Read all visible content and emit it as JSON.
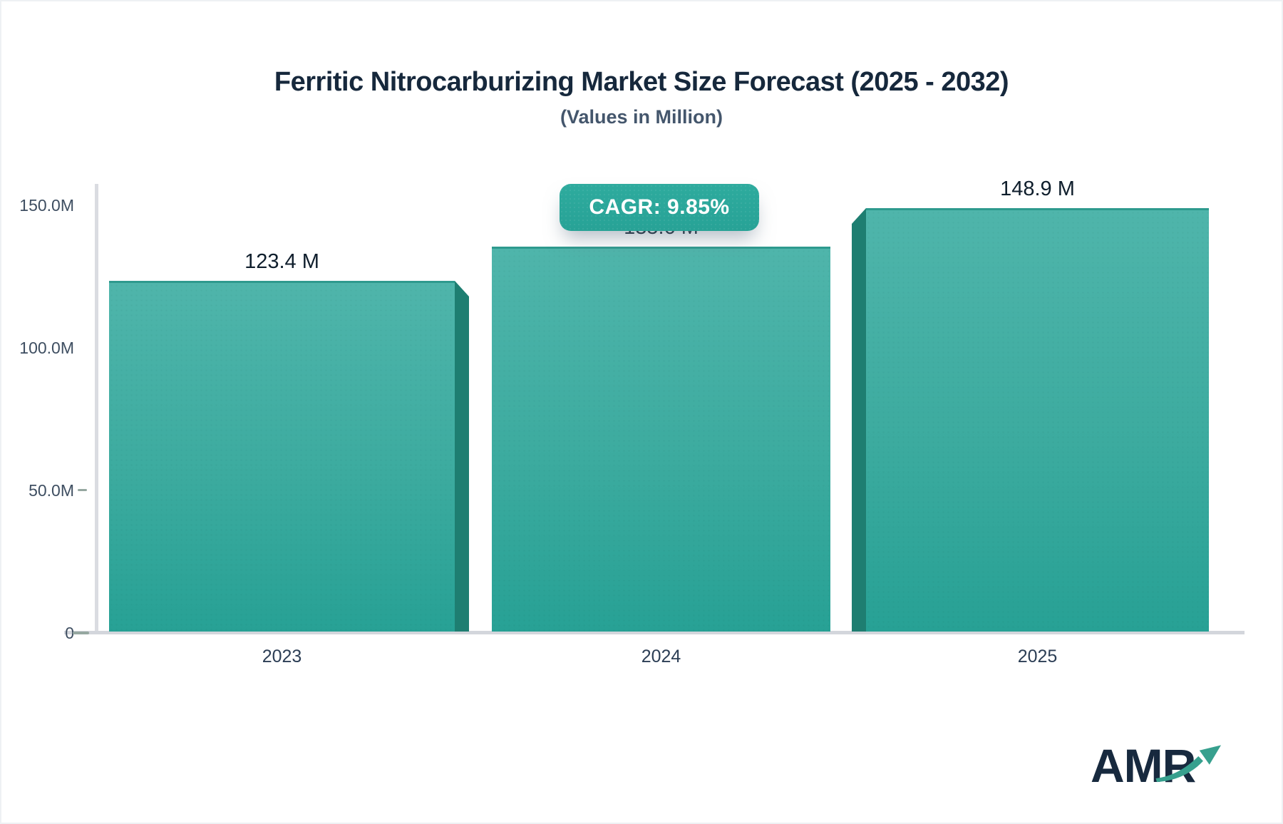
{
  "header": {
    "title": "Ferritic Nitrocarburizing Market Size Forecast (2025 - 2032)",
    "subtitle": "(Values in Million)"
  },
  "badge": {
    "label": "CAGR: 9.85%",
    "background_color": "#2ba89b",
    "text_color": "#ffffff"
  },
  "logo": {
    "text": "AMR",
    "text_color": "#17293e",
    "arrow_color": "#37a08e"
  },
  "chart_data": {
    "type": "bar",
    "title": "Ferritic Nitrocarburizing Market Size Forecast (2025 - 2032)",
    "subtitle": "(Values in Million)",
    "categories": [
      "2023",
      "2024",
      "2025"
    ],
    "values": [
      123.4,
      135.6,
      148.9
    ],
    "value_labels": [
      "123.4 M",
      "135.6 M",
      "148.9 M"
    ],
    "unit": "Million",
    "cagr": "9.85%",
    "ylim": [
      0,
      150
    ],
    "yticks": [
      {
        "label": "150.0M",
        "value": 150,
        "tick": "none"
      },
      {
        "label": "100.0M",
        "value": 100,
        "tick": "none"
      },
      {
        "label": "50.0M",
        "value": 50,
        "tick": "short"
      },
      {
        "label": "0",
        "value": 0,
        "tick": "long"
      }
    ],
    "grid": false,
    "legend": "none",
    "bar_color_top": "#4fb5ab",
    "bar_color_bottom": "#27a195",
    "bar_side_color": "#1e7e71",
    "axis_color": "#d3d6dc"
  }
}
